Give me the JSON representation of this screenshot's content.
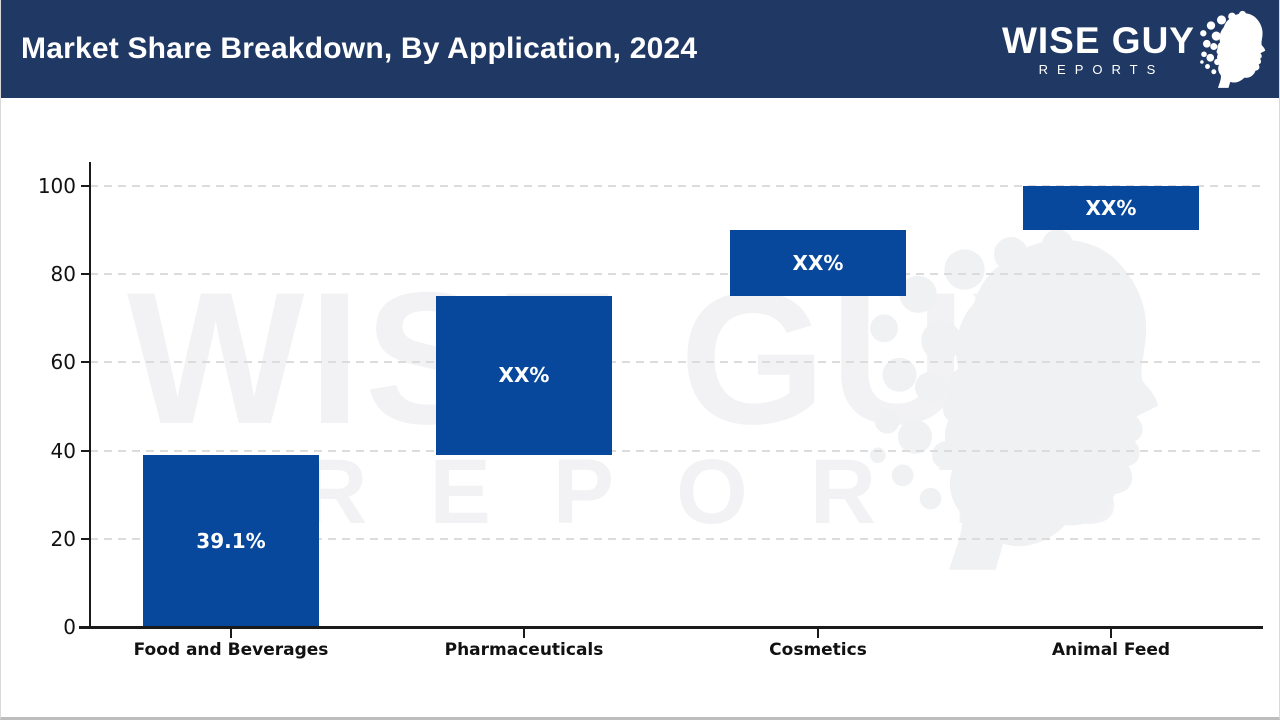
{
  "header": {
    "title": "Market Share Breakdown, By Application, 2024",
    "logo": {
      "line1": "WISE GUY",
      "line2": "REPORTS",
      "head_icon": "dotted-head-profile-icon"
    }
  },
  "watermark": {
    "line1": "WISE GUY",
    "line2": "REPORTS"
  },
  "colors": {
    "header_bg": "#1F3864",
    "bar": "#07489C",
    "grid": "#DCDCDC",
    "axis": "#1A1A1A",
    "bar_label": "#FFFFFF",
    "watermark": "#F2F2F4"
  },
  "chart_data": {
    "type": "bar",
    "subtype": "waterfall",
    "title": "Market Share Breakdown, By Application, 2024",
    "categories": [
      "Food and Beverages",
      "Pharmaceuticals",
      "Cosmetics",
      "Animal Feed"
    ],
    "bars": [
      {
        "category": "Food and Beverages",
        "start": 0,
        "end": 39.1,
        "label": "39.1%"
      },
      {
        "category": "Pharmaceuticals",
        "start": 39.1,
        "end": 75,
        "label": "XX%"
      },
      {
        "category": "Cosmetics",
        "start": 75,
        "end": 90,
        "label": "XX%"
      },
      {
        "category": "Animal Feed",
        "start": 90,
        "end": 100,
        "label": "XX%"
      }
    ],
    "ylim": [
      0,
      100
    ],
    "yticks": [
      0,
      20,
      40,
      60,
      80,
      100
    ],
    "xlabel": "",
    "ylabel": "",
    "grid": "horizontal-dashed",
    "legend": "none"
  }
}
